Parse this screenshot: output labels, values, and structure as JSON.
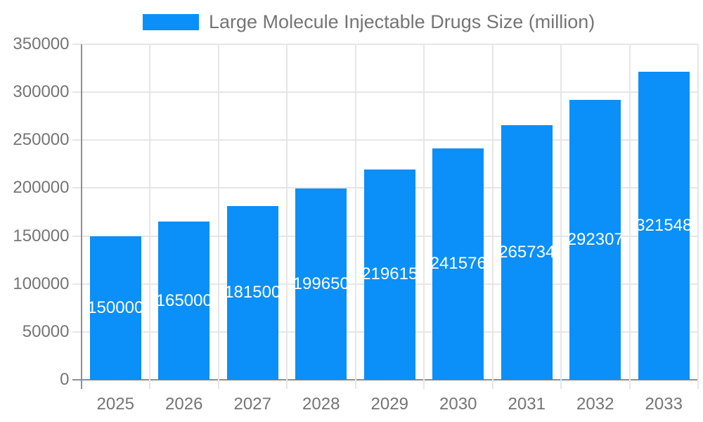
{
  "legend": {
    "label": "Large Molecule Injectable Drugs Size (million)"
  },
  "chart_data": {
    "type": "bar",
    "title": "Large Molecule Injectable Drugs Size (million)",
    "legend_position": "top",
    "categories": [
      "2025",
      "2026",
      "2027",
      "2028",
      "2029",
      "2030",
      "2031",
      "2032",
      "2033"
    ],
    "series": [
      {
        "name": "Large Molecule Injectable Drugs Size (million)",
        "values": [
          150000,
          165000,
          181500,
          199650,
          219615,
          241576,
          265734,
          292307,
          321548
        ]
      }
    ],
    "bar_value_labels": [
      "150000",
      "165000",
      "181500",
      "199650",
      "219615",
      "241576",
      "265734",
      "292307",
      "321548"
    ],
    "xlabel": "",
    "ylabel": "",
    "ylim": [
      0,
      350000
    ],
    "yticks": [
      0,
      50000,
      100000,
      150000,
      200000,
      250000,
      300000,
      350000
    ],
    "ytick_labels": [
      "0",
      "50000",
      "100000",
      "150000",
      "200000",
      "250000",
      "300000",
      "350000"
    ],
    "grid": true,
    "colors": {
      "bar": "#0b8ff8",
      "axis_text": "#757575",
      "grid_light": "#e6e6e6",
      "axis_line": "#8f8f8f",
      "bar_label_text": "#ffffff",
      "background": "#ffffff"
    }
  }
}
